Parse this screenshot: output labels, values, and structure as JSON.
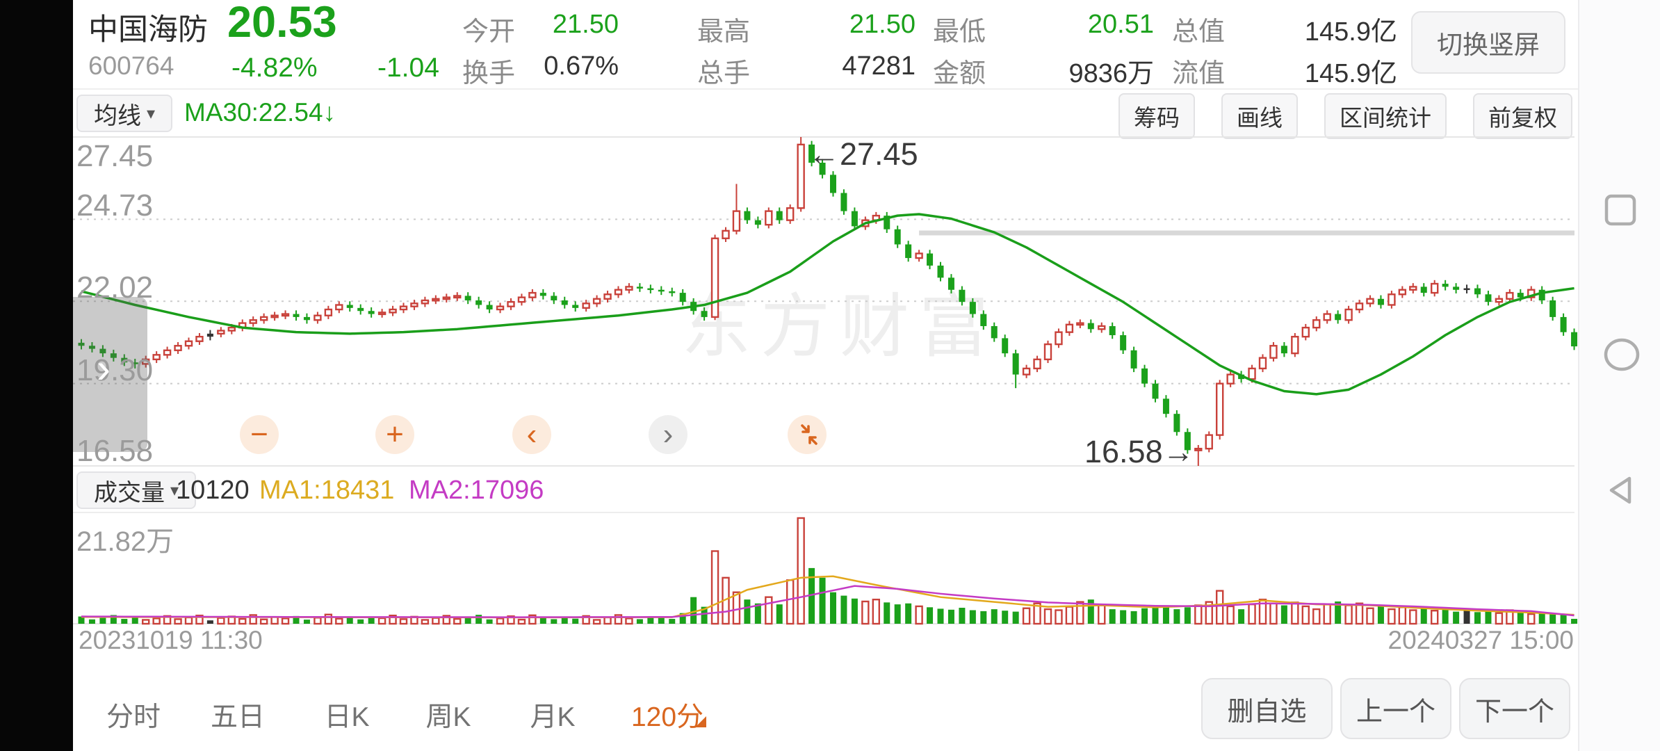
{
  "colors": {
    "up": "#c9413a",
    "down": "#1ba11b",
    "black": "#333333",
    "ma30": "#1a9e1a",
    "vol_ma1": "#e3a81c",
    "vol_ma2": "#c43bc4",
    "accent": "#d9661f",
    "grid": "#cccccc",
    "border": "#e6e6e6",
    "ref": "#d8d8d8",
    "price_green": "#1ba11b"
  },
  "header": {
    "name": "中国海防",
    "price": "20.53",
    "code": "600764",
    "change_pct": "-4.82%",
    "change": "-1.04",
    "stats": [
      {
        "label": "今开",
        "value": "21.50"
      },
      {
        "label": "换手",
        "value": "0.67%"
      },
      {
        "label": "最高",
        "value": "21.50"
      },
      {
        "label": "总手",
        "value": "47281"
      },
      {
        "label": "最低",
        "value": "20.51"
      },
      {
        "label": "金额",
        "value": "9836万"
      },
      {
        "label": "总值",
        "value": "145.9亿"
      },
      {
        "label": "流值",
        "value": "145.9亿"
      }
    ],
    "rotate_button": "切换竖屏"
  },
  "toolbar": {
    "ma_selector": "均线",
    "caret": "▾",
    "ma30_text": "MA30:22.54↓",
    "buttons": [
      "筹码",
      "画线",
      "区间统计",
      "前复权"
    ]
  },
  "chart": {
    "y_labels": [
      "27.45",
      "24.73",
      "22.02",
      "19.30",
      "16.58"
    ],
    "peak_annotation": "←27.45",
    "low_annotation": "16.58→",
    "watermark": "东方财富",
    "panel_chevron": "›",
    "controls": {
      "minus": "−",
      "plus": "+",
      "prev": "‹",
      "next": "›"
    }
  },
  "volume": {
    "selector": "成交量",
    "caret": "▾",
    "current": "10120",
    "ma1": "MA1:18431",
    "ma2": "MA2:17096",
    "scale_label": "21.82万"
  },
  "footer": {
    "start_time": "20231019 11:30",
    "end_time": "20240327 15:00",
    "tabs": [
      "分时",
      "五日",
      "日K",
      "周K",
      "月K",
      "120分"
    ],
    "buttons": [
      "删自选",
      "上一个",
      "下一个"
    ]
  },
  "chart_data": {
    "type": "candlestick",
    "symbol": "600764",
    "period": "120分",
    "x_range": [
      "20231019 11:30",
      "20240327 15:00"
    ],
    "y_axis": [
      27.45,
      24.73,
      22.02,
      19.3,
      16.58
    ],
    "price_min": 16.58,
    "price_max": 27.45,
    "open_first": 20.65,
    "closes": [
      20.55,
      20.45,
      20.3,
      20.15,
      20.0,
      19.95,
      20.1,
      20.25,
      20.4,
      20.55,
      20.7,
      20.85,
      20.95,
      21.05,
      21.15,
      21.3,
      21.4,
      21.5,
      21.55,
      21.6,
      21.5,
      21.4,
      21.55,
      21.75,
      21.9,
      21.8,
      21.7,
      21.6,
      21.65,
      21.75,
      21.85,
      21.95,
      22.05,
      22.1,
      22.15,
      22.2,
      22.05,
      21.9,
      21.75,
      21.85,
      22.0,
      22.15,
      22.3,
      22.2,
      22.05,
      21.9,
      21.8,
      21.95,
      22.1,
      22.25,
      22.4,
      22.5,
      22.45,
      22.4,
      22.35,
      22.3,
      22.0,
      21.7,
      21.5,
      24.1,
      24.35,
      25.0,
      24.7,
      24.55,
      25.0,
      24.7,
      25.1,
      27.2,
      26.6,
      26.2,
      25.6,
      25.0,
      24.5,
      24.7,
      24.85,
      24.4,
      23.9,
      23.45,
      23.6,
      23.2,
      22.8,
      22.4,
      22.0,
      21.6,
      21.2,
      20.8,
      20.3,
      19.6,
      19.8,
      20.1,
      20.6,
      21.0,
      21.25,
      21.3,
      21.1,
      21.2,
      20.9,
      20.4,
      19.8,
      19.3,
      18.8,
      18.3,
      17.7,
      17.1,
      17.15,
      17.6,
      19.3,
      19.6,
      19.45,
      19.8,
      20.15,
      20.55,
      20.3,
      20.85,
      21.15,
      21.4,
      21.6,
      21.4,
      21.75,
      21.95,
      22.1,
      21.9,
      22.25,
      22.4,
      22.5,
      22.3,
      22.6,
      22.5,
      22.4,
      22.45,
      22.25,
      22.0,
      22.1,
      22.3,
      22.15,
      22.4,
      22.05,
      21.5,
      21.0,
      20.53
    ],
    "wick_overrides": {
      "5": [
        null,
        19.8
      ],
      "59": [
        null,
        21.4
      ],
      "61": [
        25.9,
        null
      ],
      "67": [
        27.45,
        null
      ],
      "87": [
        null,
        19.15
      ],
      "104": [
        null,
        16.58
      ],
      "106": [
        null,
        17.45
      ]
    },
    "color_overrides": {
      "12": "black",
      "129": "black"
    },
    "ma30_anchors": [
      [
        0,
        22.35
      ],
      [
        5,
        21.9
      ],
      [
        10,
        21.5
      ],
      [
        15,
        21.15
      ],
      [
        20,
        21.0
      ],
      [
        25,
        20.95
      ],
      [
        30,
        21.0
      ],
      [
        35,
        21.1
      ],
      [
        40,
        21.25
      ],
      [
        45,
        21.4
      ],
      [
        50,
        21.55
      ],
      [
        55,
        21.75
      ],
      [
        58,
        21.9
      ],
      [
        62,
        22.3
      ],
      [
        66,
        23.0
      ],
      [
        70,
        24.0
      ],
      [
        73,
        24.6
      ],
      [
        76,
        24.85
      ],
      [
        78,
        24.9
      ],
      [
        81,
        24.75
      ],
      [
        85,
        24.3
      ],
      [
        88,
        23.8
      ],
      [
        91,
        23.2
      ],
      [
        94,
        22.6
      ],
      [
        97,
        22.0
      ],
      [
        100,
        21.3
      ],
      [
        103,
        20.6
      ],
      [
        106,
        19.9
      ],
      [
        109,
        19.4
      ],
      [
        112,
        19.05
      ],
      [
        115,
        18.95
      ],
      [
        118,
        19.1
      ],
      [
        121,
        19.6
      ],
      [
        124,
        20.2
      ],
      [
        127,
        20.9
      ],
      [
        130,
        21.5
      ],
      [
        133,
        22.0
      ],
      [
        136,
        22.3
      ],
      [
        139,
        22.45
      ]
    ],
    "volume_max": 218200,
    "volumes": [
      15000,
      9000,
      12000,
      18000,
      10000,
      14000,
      8000,
      11000,
      16000,
      9500,
      13000,
      17000,
      7000,
      12000,
      15000,
      10000,
      18000,
      9000,
      14000,
      11000,
      16000,
      8500,
      12500,
      19000,
      10500,
      13500,
      9000,
      15000,
      11500,
      17000,
      9500,
      14500,
      8000,
      12000,
      16500,
      10000,
      13000,
      18500,
      9000,
      11000,
      15500,
      8500,
      17500,
      12000,
      9500,
      14000,
      10500,
      16000,
      8000,
      13000,
      18000,
      11000,
      9500,
      15000,
      12500,
      10000,
      22000,
      55000,
      35000,
      150000,
      95000,
      65000,
      50000,
      42000,
      55000,
      40000,
      90000,
      218200,
      115000,
      95000,
      65000,
      58000,
      52000,
      46000,
      50000,
      44000,
      40000,
      42000,
      36000,
      34000,
      31000,
      29000,
      33000,
      28000,
      26000,
      30000,
      27000,
      25000,
      32000,
      42000,
      30000,
      28000,
      35000,
      45000,
      50000,
      38000,
      30000,
      28000,
      26000,
      32000,
      38000,
      35000,
      30000,
      34000,
      38000,
      45000,
      68000,
      36000,
      30000,
      40000,
      50000,
      42000,
      38000,
      44000,
      36000,
      30000,
      40000,
      46000,
      38000,
      42000,
      32000,
      36000,
      30000,
      34000,
      28000,
      32000,
      27000,
      30000,
      25000,
      29000,
      24000,
      26000,
      22000,
      28000,
      24000,
      20000,
      23000,
      22000,
      18000,
      10120
    ],
    "vol_ma1_anchors": [
      [
        0,
        14000
      ],
      [
        20,
        13500
      ],
      [
        40,
        13000
      ],
      [
        55,
        13500
      ],
      [
        58,
        30000
      ],
      [
        62,
        70000
      ],
      [
        67,
        95000
      ],
      [
        70,
        98000
      ],
      [
        74,
        80000
      ],
      [
        80,
        55000
      ],
      [
        85,
        45000
      ],
      [
        90,
        35000
      ],
      [
        95,
        38000
      ],
      [
        100,
        34000
      ],
      [
        105,
        38000
      ],
      [
        110,
        48000
      ],
      [
        115,
        40000
      ],
      [
        120,
        38000
      ],
      [
        125,
        32000
      ],
      [
        130,
        27000
      ],
      [
        135,
        23000
      ],
      [
        139,
        18431
      ]
    ],
    "vol_ma2_anchors": [
      [
        0,
        15000
      ],
      [
        20,
        14000
      ],
      [
        40,
        13500
      ],
      [
        55,
        14000
      ],
      [
        60,
        25000
      ],
      [
        67,
        55000
      ],
      [
        72,
        78000
      ],
      [
        76,
        72000
      ],
      [
        80,
        62000
      ],
      [
        85,
        52000
      ],
      [
        90,
        44000
      ],
      [
        95,
        40000
      ],
      [
        100,
        37000
      ],
      [
        105,
        36000
      ],
      [
        110,
        42000
      ],
      [
        115,
        41000
      ],
      [
        120,
        39000
      ],
      [
        125,
        35000
      ],
      [
        130,
        30000
      ],
      [
        135,
        26000
      ],
      [
        139,
        17096
      ]
    ],
    "ref_line": {
      "price": 24.28,
      "from_index": 78
    }
  }
}
